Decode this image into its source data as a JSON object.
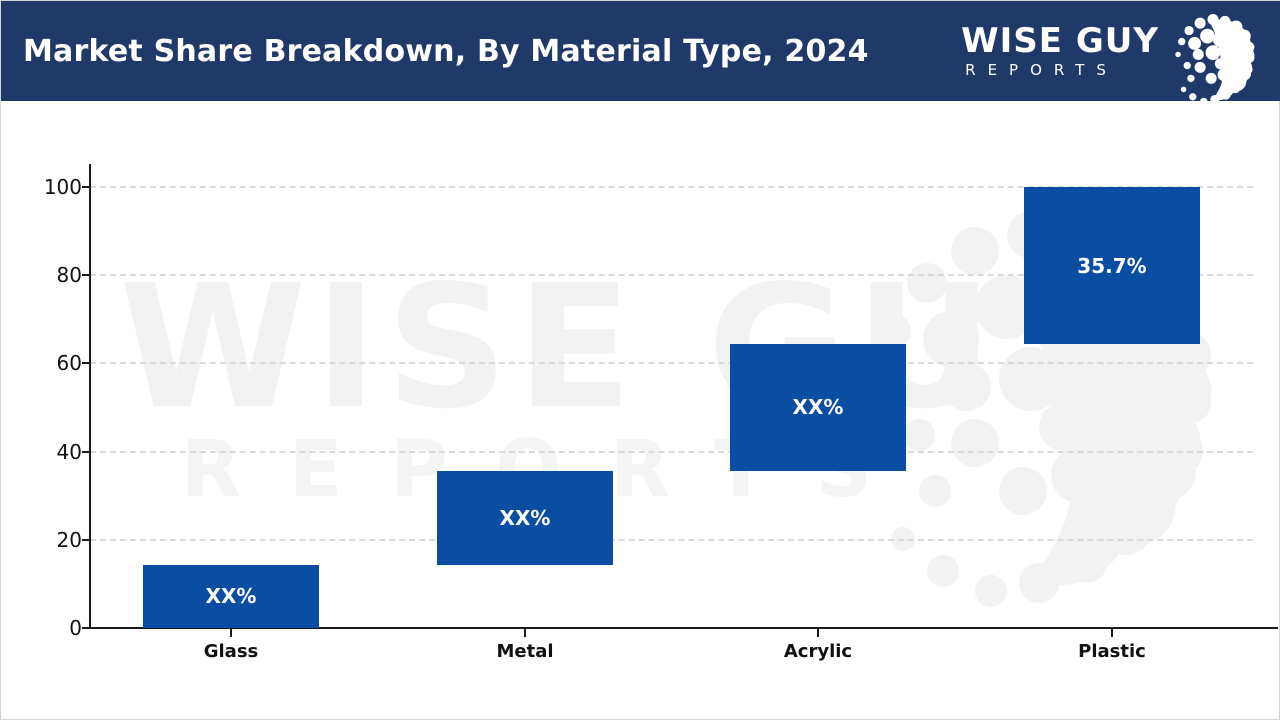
{
  "header": {
    "title": "Market Share Breakdown, By Material Type, 2024",
    "logo": {
      "line1": "WISE GUY",
      "line2": "REPORTS"
    }
  },
  "watermark": {
    "line1": "WISE GUY",
    "line2": "REPORTS"
  },
  "chart_data": {
    "type": "bar",
    "subtype": "floating-waterfall",
    "title": "Market Share Breakdown, By Material Type, 2024",
    "categories": [
      "Glass",
      "Metal",
      "Acrylic",
      "Plastic"
    ],
    "bars": [
      {
        "category": "Glass",
        "start": 0,
        "end": 14.3,
        "label": "XX%"
      },
      {
        "category": "Metal",
        "start": 14.3,
        "end": 35.7,
        "label": "XX%"
      },
      {
        "category": "Acrylic",
        "start": 35.7,
        "end": 64.3,
        "label": "XX%"
      },
      {
        "category": "Plastic",
        "start": 64.3,
        "end": 100,
        "label": "35.7%"
      }
    ],
    "xlabel": "",
    "ylabel": "",
    "ylim": [
      0,
      100
    ],
    "yticks": [
      0,
      20,
      40,
      60,
      80,
      100
    ],
    "grid": "horizontal-dashed",
    "legend": "none",
    "bar_color": "#0b4da2",
    "bar_label_color": "#ffffff"
  },
  "colors": {
    "header_bg": "#1f3a68",
    "bar": "#0b4da2",
    "grid": "#d9d9d9",
    "axis": "#1a1a1a",
    "watermark": "#f2f2f2"
  }
}
